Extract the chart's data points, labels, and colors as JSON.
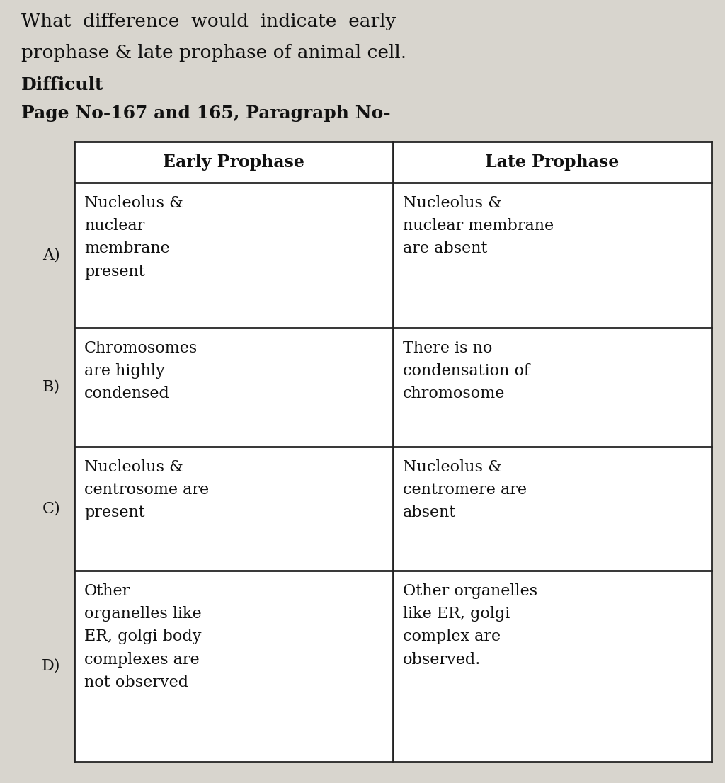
{
  "title_line1": "What  difference  would  indicate  early",
  "title_line2": "prophase & late prophase of animal cell.",
  "difficulty": "Difficult",
  "page_info": "Page No-167 and 165, Paragraph No-",
  "col_headers": [
    "Early Prophase",
    "Late Prophase"
  ],
  "row_labels": [
    "A)",
    "B)",
    "C)",
    "D)"
  ],
  "table_data": [
    [
      "Nucleolus &\nnuclear\nmembrane\npresent",
      "Nucleolus &\nnuclear membrane\nare absent"
    ],
    [
      "Chromosomes\nare highly\ncondensed",
      "There is no\ncondensation of\nchromosome"
    ],
    [
      "Nucleolus &\ncentrosome are\npresent",
      "Nucleolus &\ncentromere are\nabsent"
    ],
    [
      "Other\norganelles like\nER, golgi body\ncomplexes are\nnot observed",
      "Other organelles\nlike ER, golgi\ncomplex are\nobserved."
    ]
  ],
  "bg_color": "#d8d5ce",
  "table_bg": "#ffffff",
  "border_color": "#222222",
  "text_color": "#111111",
  "header_text_color": "#111111",
  "font_size_title": 19,
  "font_size_difficulty": 18,
  "font_size_page": 18,
  "font_size_table": 16,
  "font_size_header": 17
}
